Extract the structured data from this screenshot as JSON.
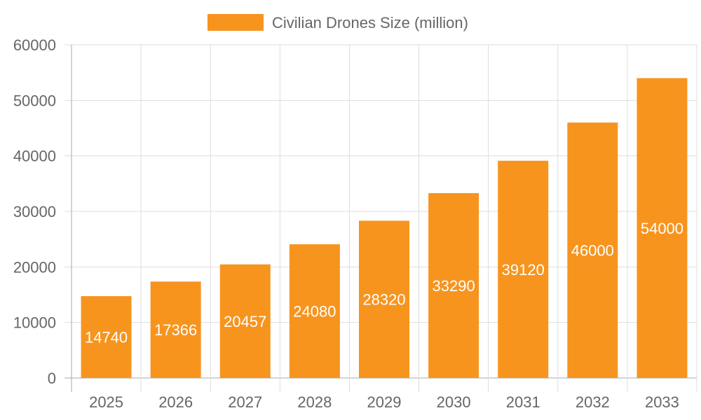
{
  "chart_data": {
    "type": "bar",
    "title": "",
    "xlabel": "",
    "ylabel": "",
    "categories": [
      "2025",
      "2026",
      "2027",
      "2028",
      "2029",
      "2030",
      "2031",
      "2032",
      "2033"
    ],
    "series": [
      {
        "name": "Civilian Drones Size (million)",
        "values": [
          14740,
          17366,
          20457,
          24080,
          28320,
          33290,
          39120,
          46000,
          54000
        ],
        "color": "#F7941E"
      }
    ],
    "ylim": [
      0,
      60000
    ],
    "yticks": [
      0,
      10000,
      20000,
      30000,
      40000,
      50000,
      60000
    ],
    "grid": true,
    "legend": "top",
    "data_labels": true,
    "data_label_color": "#FFFFFF"
  }
}
